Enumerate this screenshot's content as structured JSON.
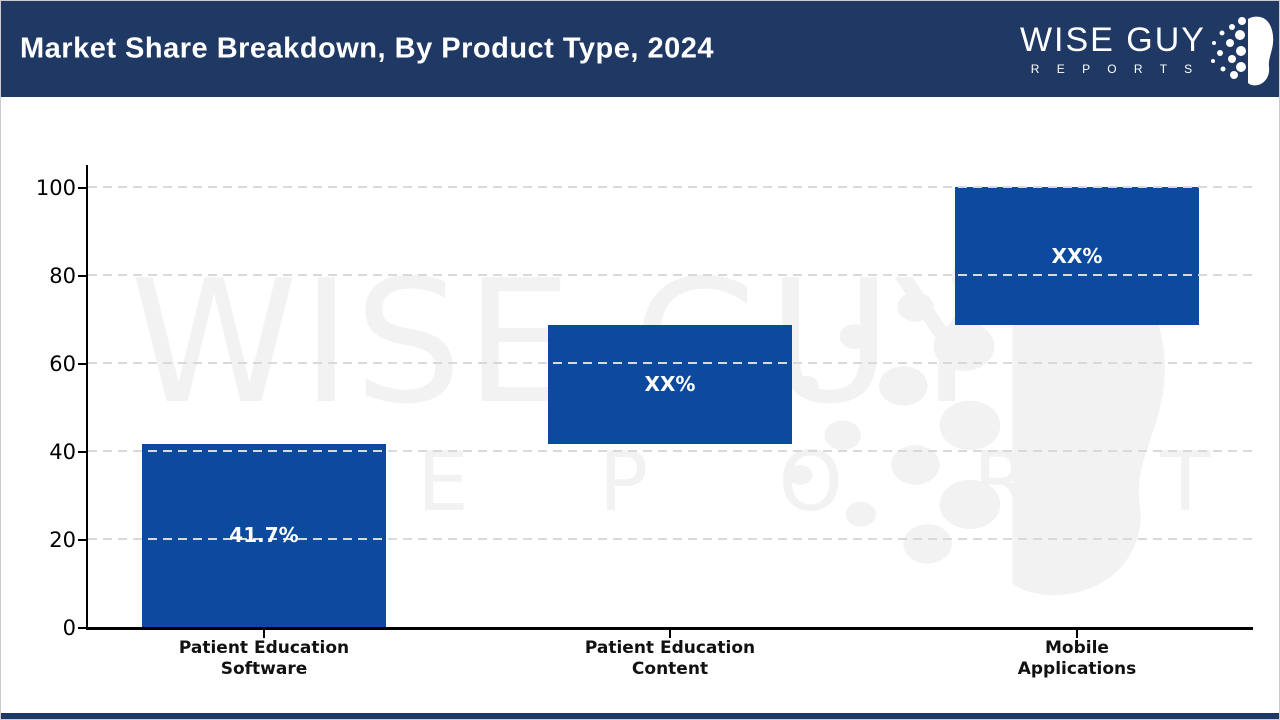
{
  "header": {
    "title": "Market Share Breakdown, By Product Type, 2024",
    "bg_color": "#1f3864",
    "logo": {
      "name": "Wise Guy Reports",
      "line1": "WISE GUY",
      "line2": "R E P O R T S"
    }
  },
  "watermark": {
    "line1": "WISE GUY",
    "line2": "R E P O R T S"
  },
  "chart_data": {
    "type": "bar",
    "subtype": "floating-waterfall",
    "title": "Market Share Breakdown, By Product Type, 2024",
    "categories": [
      "Patient Education Software",
      "Patient Education Content",
      "Mobile Applications"
    ],
    "category_lines": [
      [
        "Patient Education",
        "Software"
      ],
      [
        "Patient Education",
        "Content"
      ],
      [
        "Mobile",
        "Applications"
      ]
    ],
    "segments": [
      {
        "category": "Patient Education Software",
        "start": 0,
        "end": 41.7,
        "label": "41.7%"
      },
      {
        "category": "Patient Education Content",
        "start": 41.7,
        "end": 68.6,
        "label": "XX%"
      },
      {
        "category": "Mobile Applications",
        "start": 68.6,
        "end": 100,
        "label": "XX%"
      }
    ],
    "ylim": [
      0,
      100
    ],
    "yticks": [
      0,
      20,
      40,
      60,
      80,
      100
    ],
    "grid": "horizontal-dashed",
    "legend": "none",
    "bar_color": "#0b4a9e",
    "bar_label_color": "#ffffff",
    "gridline_color": "#d9d9d9",
    "axis_color": "#000000"
  }
}
